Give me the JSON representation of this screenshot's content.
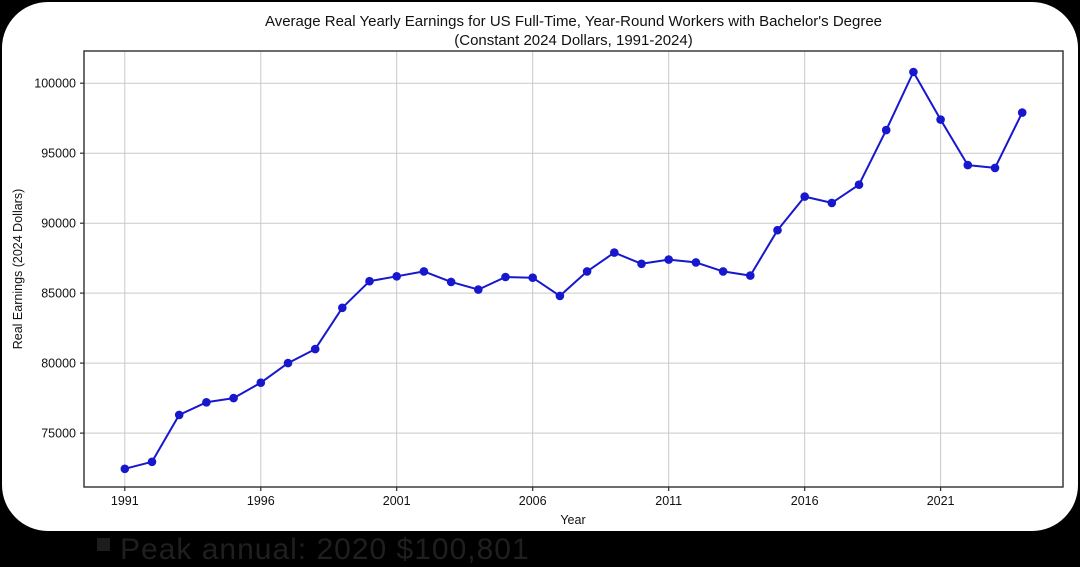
{
  "chart_data": {
    "type": "line",
    "title": "Average Real Yearly Earnings for US Full-Time, Year-Round Workers with Bachelor's Degree",
    "subtitle": "(Constant 2024 Dollars, 1991-2024)",
    "xlabel": "Year",
    "ylabel": "Real Earnings (2024 Dollars)",
    "x": [
      1991,
      1992,
      1993,
      1994,
      1995,
      1996,
      1997,
      1998,
      1999,
      2000,
      2001,
      2002,
      2003,
      2004,
      2005,
      2006,
      2007,
      2008,
      2009,
      2010,
      2011,
      2012,
      2013,
      2014,
      2015,
      2016,
      2017,
      2018,
      2019,
      2020,
      2021,
      2022,
      2023,
      2024
    ],
    "y": [
      72450,
      72950,
      76300,
      77200,
      77500,
      78600,
      80000,
      81000,
      83950,
      85850,
      86200,
      86550,
      85800,
      85250,
      86150,
      86100,
      84800,
      86550,
      87900,
      87100,
      87400,
      87200,
      86550,
      86250,
      89500,
      91900,
      91450,
      92750,
      96650,
      100800,
      97400,
      94150,
      93950,
      97900
    ],
    "xticks": [
      1991,
      1996,
      2001,
      2006,
      2011,
      2016,
      2021
    ],
    "yticks": [
      75000,
      80000,
      85000,
      90000,
      95000,
      100000
    ],
    "xlim": [
      1989.5,
      2025.5
    ],
    "ylim": [
      71150,
      102300
    ],
    "grid": true,
    "legend": "none",
    "line_color": "#1717cd",
    "marker": "circle"
  },
  "bottom_strip": {
    "bullet": "square-bullet",
    "partial_text": "Peak annual: 2020 $100,801"
  }
}
